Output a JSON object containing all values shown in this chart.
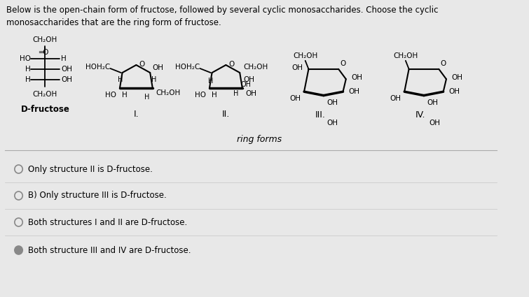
{
  "title_text": "Below is the open-chain form of fructose, followed by several cyclic monosaccharides. Choose the cyclic\nmonosaccharides that are the ring form of fructose.",
  "bg_color": "#e8e8e8",
  "panel_color": "#f2f2f2",
  "text_color": "#000000",
  "options": [
    "Only structure II is D-fructose.",
    "B) Only structure III is D-fructose.",
    "Both structures I and II are D-fructose.",
    "Both structure III and IV are D-fructose."
  ],
  "option_selected": [
    false,
    false,
    false,
    true
  ],
  "ring_forms_label": "ring forms",
  "d_fructose_label": "D-fructose"
}
